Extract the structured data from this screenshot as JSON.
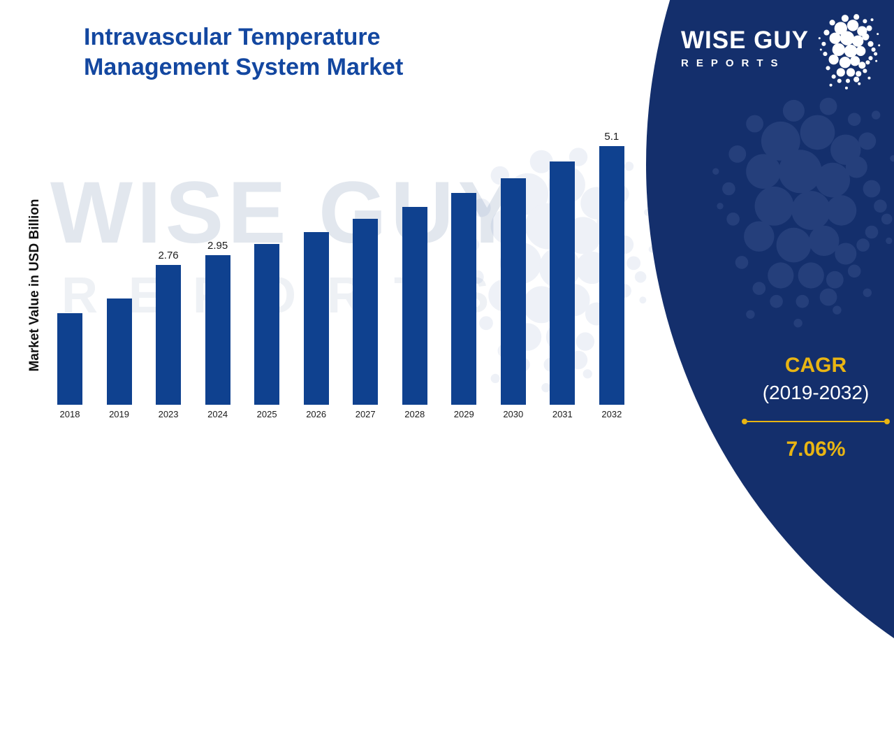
{
  "header": {
    "title_line1": "Intravascular Temperature",
    "title_line2": "Management System Market"
  },
  "logo": {
    "name": "WISE GUY",
    "sub": "REPORTS"
  },
  "watermark": {
    "line1": "WISE GUY",
    "line2": "REPORTS"
  },
  "cagr": {
    "label": "CAGR",
    "range": "(2019-2032)",
    "value": "7.06%"
  },
  "colors": {
    "bar": "#0f418f",
    "title_text": "#1347a0",
    "panel_bg": "#142f6c",
    "accent_gold": "#e9b513",
    "watermark_light": "#e2e7ee",
    "watermark_lighter": "#eef1f5"
  },
  "chart_data": {
    "type": "bar",
    "title": "Intravascular Temperature Management System Market",
    "xlabel": "",
    "ylabel": "Market Value in USD Billion",
    "categories": [
      "2018",
      "2019",
      "2023",
      "2024",
      "2025",
      "2026",
      "2027",
      "2028",
      "2029",
      "2030",
      "2031",
      "2032"
    ],
    "values": [
      1.8,
      2.1,
      2.76,
      2.95,
      3.17,
      3.41,
      3.66,
      3.9,
      4.17,
      4.46,
      4.79,
      5.1
    ],
    "bar_labels": [
      "",
      "",
      "2.76",
      "2.95",
      "",
      "",
      "",
      "",
      "",
      "",
      "",
      "5.1"
    ],
    "ylim": [
      0,
      5.5
    ],
    "grid": false,
    "legend": false,
    "bar_color": "#0f418f"
  }
}
